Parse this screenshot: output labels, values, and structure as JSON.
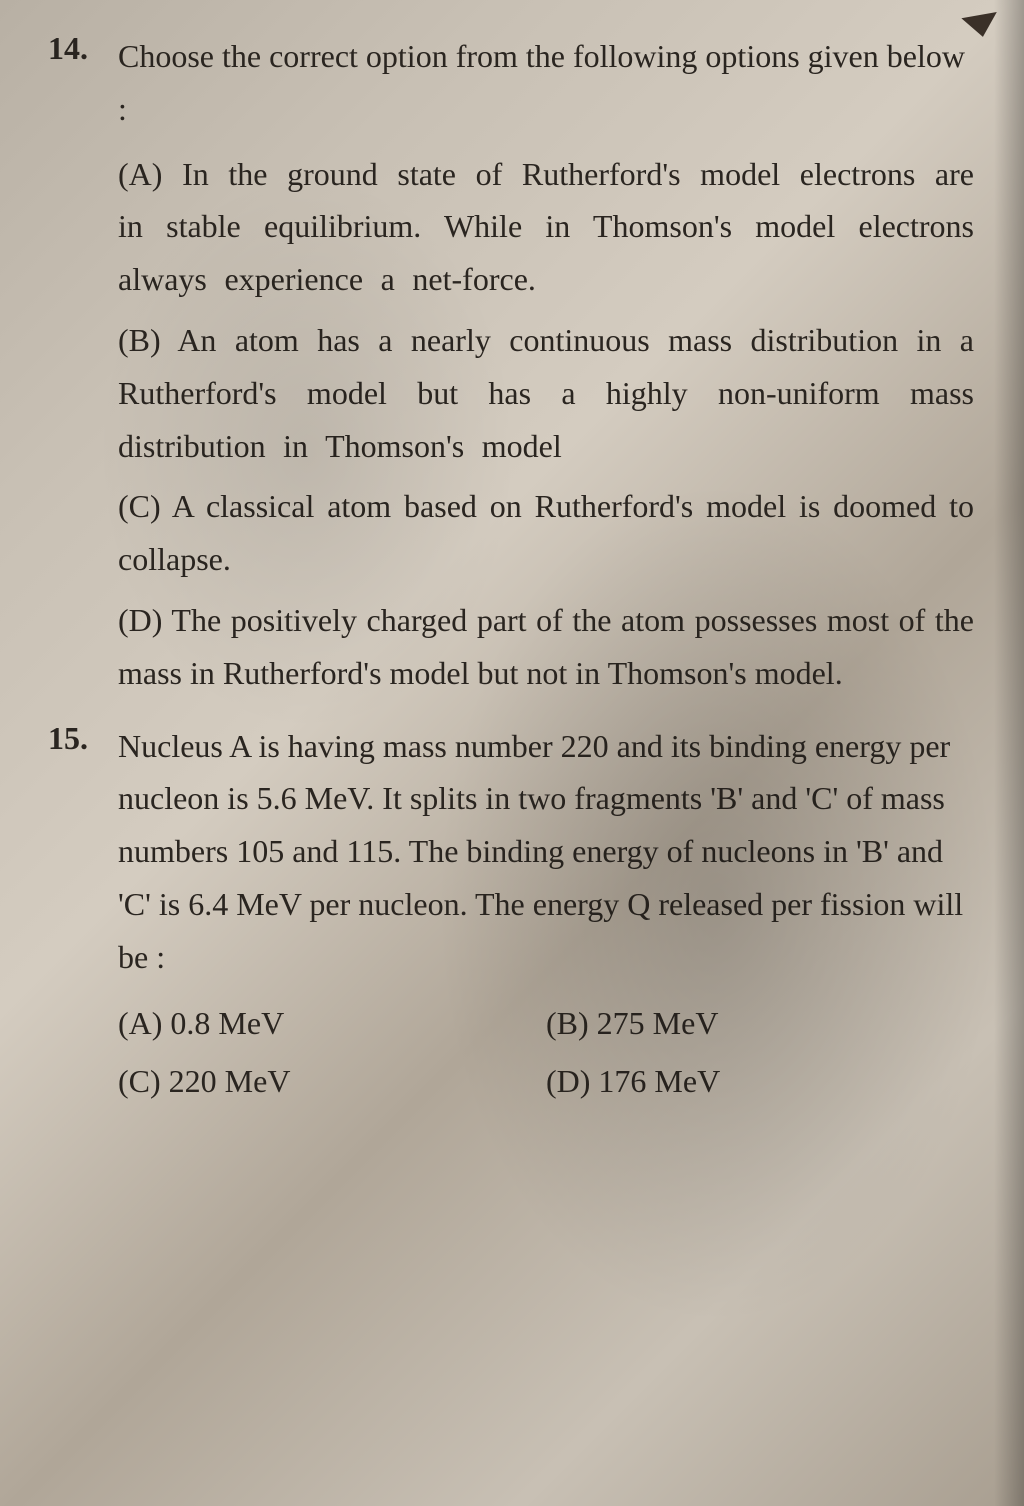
{
  "page": {
    "background_colors": [
      "#b8b0a4",
      "#c8c0b4",
      "#d4ccc0",
      "#b0a698",
      "#a89e90"
    ],
    "text_color": "#2a2520",
    "font_family": "Georgia, Times New Roman, serif",
    "base_fontsize": 32,
    "line_height": 1.65
  },
  "questions": [
    {
      "number": "14.",
      "stem": "Choose the correct option from the following options given below :",
      "options": [
        {
          "label": "(A)",
          "text": "In the ground state of Rutherford's model electrons are in stable equilibrium. While in Thomson's model electrons always experience a net-force."
        },
        {
          "label": "(B)",
          "text": "An atom has a nearly continuous mass distribution in a Rutherford's model but has a highly non-uniform mass distribution in Thomson's model"
        },
        {
          "label": "(C)",
          "text": "A classical atom based on Rutherford's model is doomed to collapse."
        },
        {
          "label": "(D)",
          "text": "The positively charged part of the atom possesses most of the mass in Rutherford's model but not in Thomson's model."
        }
      ],
      "layout": "stacked"
    },
    {
      "number": "15.",
      "stem": "Nucleus A is having mass number 220 and its binding energy per nucleon is 5.6 MeV. It splits in two fragments 'B' and 'C' of mass numbers 105 and 115. The binding energy of nucleons in 'B' and 'C' is 6.4 MeV per nucleon. The energy Q released per fission will be :",
      "options": [
        {
          "label": "(A)",
          "text": "0.8 MeV"
        },
        {
          "label": "(B)",
          "text": "275 MeV"
        },
        {
          "label": "(C)",
          "text": "220 MeV"
        },
        {
          "label": "(D)",
          "text": "176 MeV"
        }
      ],
      "layout": "grid2"
    }
  ]
}
